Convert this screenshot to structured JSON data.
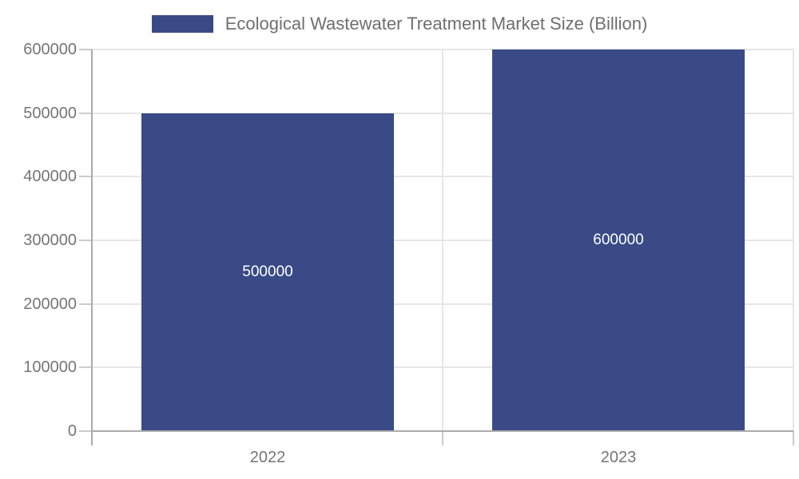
{
  "chart_data": {
    "type": "bar",
    "series_name": "Ecological Wastewater Treatment Market Size (Billion)",
    "categories": [
      "2022",
      "2023"
    ],
    "values": [
      500000,
      600000
    ],
    "bar_value_labels": [
      "500000",
      "600000"
    ],
    "ylim": [
      0,
      600000
    ],
    "ytick_values": [
      0,
      100000,
      200000,
      300000,
      400000,
      500000,
      600000
    ],
    "ytick_labels": [
      "0",
      "100000",
      "200000",
      "300000",
      "400000",
      "500000",
      "600000"
    ],
    "grid": true,
    "legend_position": "top-center",
    "xlabel": "",
    "ylabel": "",
    "colors": {
      "bar": "#3a4a87",
      "bar_label_text": "#ffffff",
      "axis_text": "#757575",
      "legend_text": "#6f6f6f",
      "gridline": "#e6e6e6",
      "axis_line": "#ababab",
      "tick": "#cccccc",
      "background": "#ffffff"
    }
  }
}
